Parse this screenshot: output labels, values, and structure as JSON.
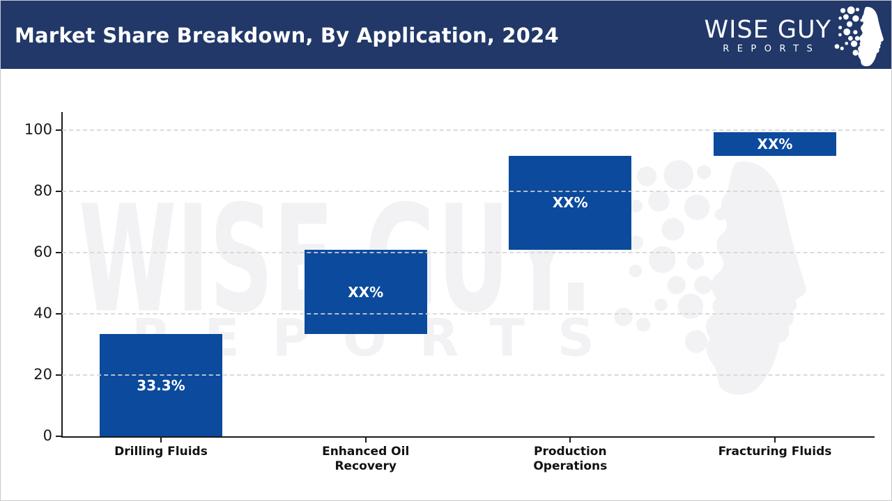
{
  "header": {
    "title": "Market Share Breakdown, By Application, 2024",
    "logo": {
      "line1": "WISE GUY",
      "line2": "REPORTS"
    }
  },
  "watermark": {
    "line1": "WISE GUY.",
    "line2": "REPORTS"
  },
  "chart_data": {
    "type": "bar",
    "subtype": "waterfall",
    "title": "Market Share Breakdown, By Application, 2024",
    "categories": [
      "Drilling Fluids",
      "Enhanced Oil\nRecovery",
      "Production\nOperations",
      "Fracturing Fluids"
    ],
    "segments": [
      {
        "category": "Drilling Fluids",
        "start": 0,
        "end": 33.3,
        "label": "33.3%"
      },
      {
        "category": "Enhanced Oil Recovery",
        "start": 33.3,
        "end": 61.0,
        "label": "XX%"
      },
      {
        "category": "Production Operations",
        "start": 61.0,
        "end": 91.7,
        "label": "XX%"
      },
      {
        "category": "Fracturing Fluids",
        "start": 91.7,
        "end": 99.3,
        "label": "XX%"
      }
    ],
    "xlabel": "",
    "ylabel": "",
    "yticks": [
      0,
      20,
      40,
      60,
      80,
      100
    ],
    "ylim": [
      0,
      106
    ],
    "grid": "horizontal-dashed",
    "legend": "none"
  },
  "colors": {
    "header_bg": "#213869",
    "bar": "#0b4a9c",
    "bar_label": "#ffffff",
    "grid": "#d4d4d4",
    "axis": "#1a1a1a",
    "watermark": "#f2f2f4"
  }
}
